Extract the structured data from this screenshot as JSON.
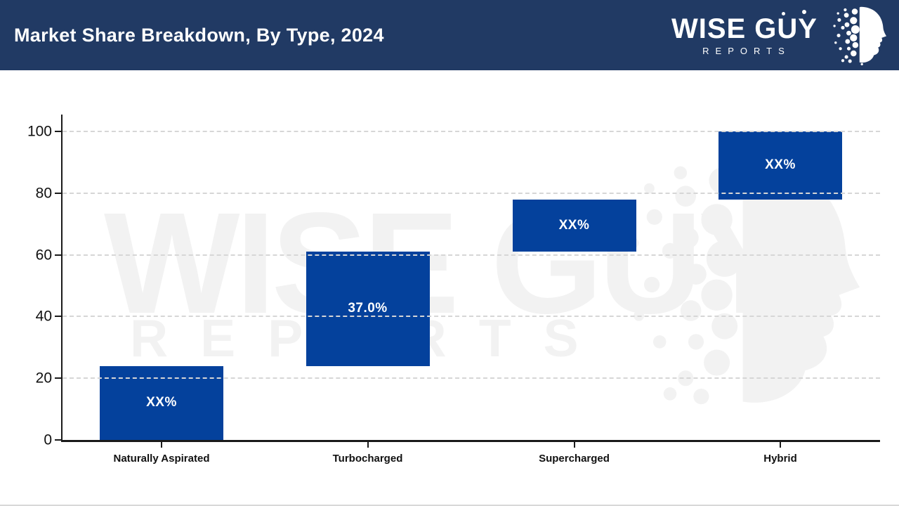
{
  "header": {
    "title": "Market Share Breakdown, By Type, 2024",
    "bg_color": "#213a64",
    "logo": {
      "name": "Wise Guy Reports",
      "line1": "WISE GUY",
      "line2": "REPORTS"
    }
  },
  "watermark": {
    "line1": "WISE GUY",
    "line2": "REPORTS"
  },
  "chart_data": {
    "type": "bar",
    "subtype": "floating-waterfall",
    "title": "Market Share Breakdown, By Type, 2024",
    "categories": [
      "Naturally Aspirated",
      "Turbocharged",
      "Supercharged",
      "Hybrid"
    ],
    "series": [
      {
        "name": "Market Share (%)",
        "segments": [
          {
            "category": "Naturally Aspirated",
            "start": 0,
            "end": 24,
            "value": 24,
            "label": "XX%"
          },
          {
            "category": "Turbocharged",
            "start": 24,
            "end": 61,
            "value": 37,
            "label": "37.0%"
          },
          {
            "category": "Supercharged",
            "start": 61,
            "end": 78,
            "value": 17,
            "label": "XX%"
          },
          {
            "category": "Hybrid",
            "start": 78,
            "end": 100,
            "value": 22,
            "label": "XX%"
          }
        ]
      }
    ],
    "xlabel": "",
    "ylabel": "",
    "ylim": [
      0,
      105
    ],
    "yticks": [
      0,
      20,
      40,
      60,
      80,
      100
    ],
    "value_suffix": "%",
    "grid": "dashed-horizontal",
    "legend": "none",
    "bar_color": "#04419c",
    "bar_label_color": "#ffffff",
    "grid_color": "#d6d6d6",
    "axis_color": "#1a1a1a"
  }
}
